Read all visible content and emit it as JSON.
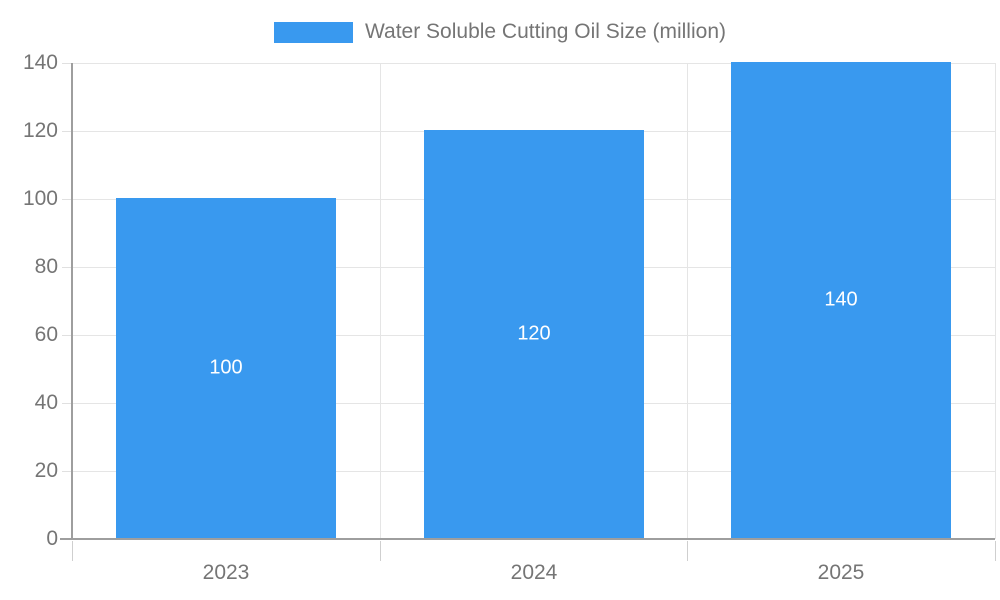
{
  "legend": {
    "label": "Water Soluble Cutting Oil Size (million)"
  },
  "chart_data": {
    "type": "bar",
    "title": "Water Soluble Cutting Oil Size (million)",
    "categories": [
      "2023",
      "2024",
      "2025"
    ],
    "series": [
      {
        "name": "Water Soluble Cutting Oil Size (million)",
        "values": [
          100,
          120,
          140
        ]
      }
    ],
    "bar_labels": [
      "100",
      "120",
      "140"
    ],
    "xlabel": "",
    "ylabel": "",
    "ylim": [
      0,
      140
    ],
    "yticks": [
      0,
      20,
      40,
      60,
      80,
      100,
      120,
      140
    ],
    "grid": true,
    "legend_position": "top-center"
  },
  "colors": {
    "bar": "#3999ef",
    "bar_label_text": "#ffffff",
    "axis_text": "#757575",
    "grid_line": "#e5e5e5",
    "y_tick_line": "#e0e0e0",
    "x_tick_line": "#cfcfcf",
    "axis_line": "#9e9e9e",
    "background": "#ffffff"
  }
}
